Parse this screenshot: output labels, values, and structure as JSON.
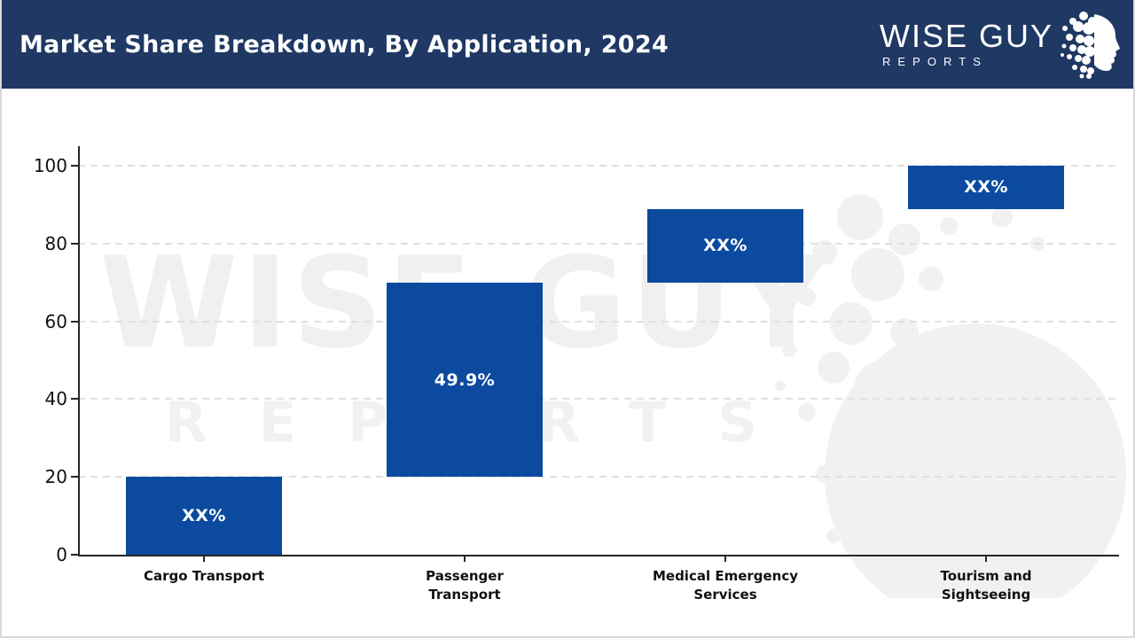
{
  "header": {
    "title": "Market Share Breakdown, By Application, 2024",
    "logo": {
      "line1": "WISE GUY",
      "line2": "REPORTS"
    }
  },
  "watermark": {
    "line1": "WISE GUY",
    "line2": "REPORTS"
  },
  "chart_data": {
    "type": "bar",
    "subtype": "waterfall",
    "title": "Market Share Breakdown, By Application, 2024",
    "categories": [
      "Cargo Transport",
      "Passenger Transport",
      "Medical Emergency Services",
      "Tourism and Sightseeing"
    ],
    "series": [
      {
        "name": "Market Share",
        "bars": [
          {
            "category": "Cargo Transport",
            "label": "XX%",
            "start": 0,
            "end": 20
          },
          {
            "category": "Passenger Transport",
            "label": "49.9%",
            "start": 20,
            "end": 69.9
          },
          {
            "category": "Medical Emergency Services",
            "label": "XX%",
            "start": 69.9,
            "end": 88.9
          },
          {
            "category": "Tourism and Sightseeing",
            "label": "XX%",
            "start": 88.9,
            "end": 100
          }
        ]
      }
    ],
    "xlabel": "",
    "ylabel": "",
    "yticks": [
      0,
      20,
      40,
      60,
      80,
      100
    ],
    "ylim": [
      0,
      105
    ],
    "grid": "horizontal-dashed",
    "legend": "none",
    "colors": {
      "bar": "#0b4a9f",
      "bar_label": "#ffffff",
      "header_bg": "#1f3864",
      "grid": "#e0e0e0",
      "axis": "#262626",
      "watermark": "#f0f0f0"
    }
  }
}
